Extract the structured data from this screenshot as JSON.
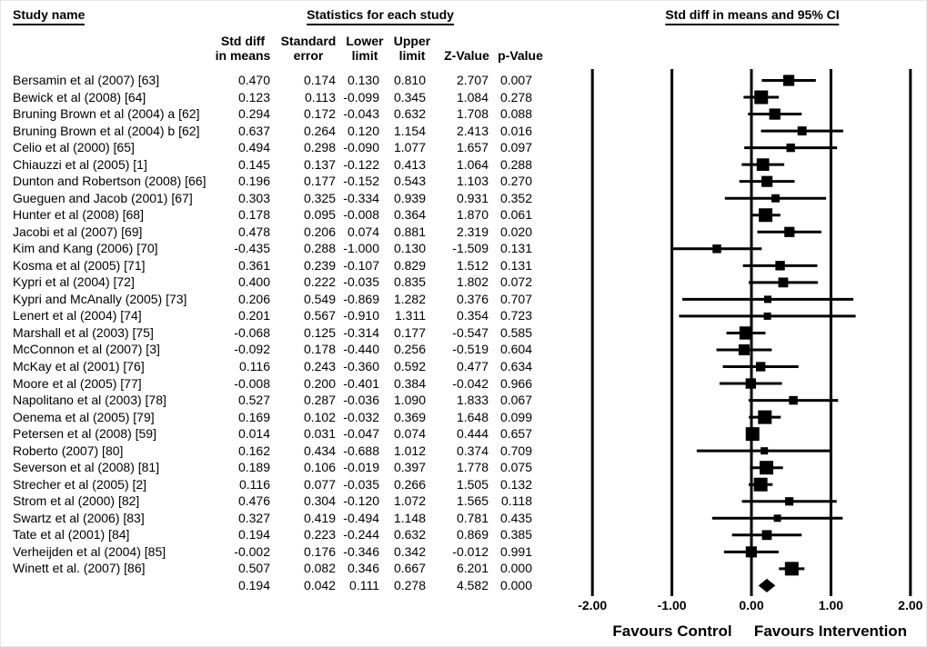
{
  "figure": {
    "study_col_title": "Study name",
    "stats_title": "Statistics for each study",
    "plot_title": "Std diff in means and 95% CI",
    "favours_left": "Favours Control",
    "favours_right": "Favours Intervention"
  },
  "chart_data": {
    "type": "forest",
    "effect_measure": "Std diff in means",
    "columns": [
      {
        "line1": "Std diff",
        "line2": "in means"
      },
      {
        "line1": "Standard",
        "line2": "error"
      },
      {
        "line1": "Lower",
        "line2": "limit"
      },
      {
        "line1": "Upper",
        "line2": "limit"
      },
      {
        "line1": "",
        "line2": "Z-Value"
      },
      {
        "line1": "",
        "line2": "p-Value"
      }
    ],
    "x_axis": {
      "range": [
        -2,
        2
      ],
      "ticks": [
        -2,
        -1,
        0,
        1,
        2
      ],
      "tick_labels": [
        "-2.00",
        "-1.00",
        "0.00",
        "1.00",
        "2.00"
      ],
      "grid": true
    },
    "studies": [
      {
        "name": "Bersamin et al (2007) [63]",
        "std_diff": "0.470",
        "std_err": "0.174",
        "lower": "0.130",
        "upper": "0.810",
        "z": "2.707",
        "p": "0.007"
      },
      {
        "name": "Bewick et al (2008) [64]",
        "std_diff": "0.123",
        "std_err": "0.113",
        "lower": "-0.099",
        "upper": "0.345",
        "z": "1.084",
        "p": "0.278"
      },
      {
        "name": "Bruning Brown et al (2004) a [62]",
        "std_diff": "0.294",
        "std_err": "0.172",
        "lower": "-0.043",
        "upper": "0.632",
        "z": "1.708",
        "p": "0.088"
      },
      {
        "name": "Bruning Brown et al (2004) b [62]",
        "std_diff": "0.637",
        "std_err": "0.264",
        "lower": "0.120",
        "upper": "1.154",
        "z": "2.413",
        "p": "0.016"
      },
      {
        "name": "Celio et al (2000) [65]",
        "std_diff": "0.494",
        "std_err": "0.298",
        "lower": "-0.090",
        "upper": "1.077",
        "z": "1.657",
        "p": "0.097"
      },
      {
        "name": "Chiauzzi et al (2005) [1]",
        "std_diff": "0.145",
        "std_err": "0.137",
        "lower": "-0.122",
        "upper": "0.413",
        "z": "1.064",
        "p": "0.288"
      },
      {
        "name": "Dunton and Robertson (2008) [66]",
        "std_diff": "0.196",
        "std_err": "0.177",
        "lower": "-0.152",
        "upper": "0.543",
        "z": "1.103",
        "p": "0.270"
      },
      {
        "name": "Gueguen and Jacob (2001) [67]",
        "std_diff": "0.303",
        "std_err": "0.325",
        "lower": "-0.334",
        "upper": "0.939",
        "z": "0.931",
        "p": "0.352"
      },
      {
        "name": "Hunter et al (2008) [68]",
        "std_diff": "0.178",
        "std_err": "0.095",
        "lower": "-0.008",
        "upper": "0.364",
        "z": "1.870",
        "p": "0.061"
      },
      {
        "name": "Jacobi et al (2007) [69]",
        "std_diff": "0.478",
        "std_err": "0.206",
        "lower": "0.074",
        "upper": "0.881",
        "z": "2.319",
        "p": "0.020"
      },
      {
        "name": "Kim and Kang (2006) [70]",
        "std_diff": "-0.435",
        "std_err": "0.288",
        "lower": "-1.000",
        "upper": "0.130",
        "z": "-1.509",
        "p": "0.131"
      },
      {
        "name": "Kosma et al (2005) [71]",
        "std_diff": "0.361",
        "std_err": "0.239",
        "lower": "-0.107",
        "upper": "0.829",
        "z": "1.512",
        "p": "0.131"
      },
      {
        "name": "Kypri et al (2004) [72]",
        "std_diff": "0.400",
        "std_err": "0.222",
        "lower": "-0.035",
        "upper": "0.835",
        "z": "1.802",
        "p": "0.072"
      },
      {
        "name": "Kypri and McAnally (2005) [73]",
        "std_diff": "0.206",
        "std_err": "0.549",
        "lower": "-0.869",
        "upper": "1.282",
        "z": "0.376",
        "p": "0.707"
      },
      {
        "name": "Lenert et al (2004) [74]",
        "std_diff": "0.201",
        "std_err": "0.567",
        "lower": "-0.910",
        "upper": "1.311",
        "z": "0.354",
        "p": "0.723"
      },
      {
        "name": "Marshall et al (2003) [75]",
        "std_diff": "-0.068",
        "std_err": "0.125",
        "lower": "-0.314",
        "upper": "0.177",
        "z": "-0.547",
        "p": "0.585"
      },
      {
        "name": "McConnon et al (2007) [3]",
        "std_diff": "-0.092",
        "std_err": "0.178",
        "lower": "-0.440",
        "upper": "0.256",
        "z": "-0.519",
        "p": "0.604"
      },
      {
        "name": "McKay et al (2001) [76]",
        "std_diff": "0.116",
        "std_err": "0.243",
        "lower": "-0.360",
        "upper": "0.592",
        "z": "0.477",
        "p": "0.634"
      },
      {
        "name": "Moore et al (2005) [77]",
        "std_diff": "-0.008",
        "std_err": "0.200",
        "lower": "-0.401",
        "upper": "0.384",
        "z": "-0.042",
        "p": "0.966"
      },
      {
        "name": "Napolitano et al (2003) [78]",
        "std_diff": "0.527",
        "std_err": "0.287",
        "lower": "-0.036",
        "upper": "1.090",
        "z": "1.833",
        "p": "0.067"
      },
      {
        "name": "Oenema et al (2005) [79]",
        "std_diff": "0.169",
        "std_err": "0.102",
        "lower": "-0.032",
        "upper": "0.369",
        "z": "1.648",
        "p": "0.099"
      },
      {
        "name": "Petersen et al (2008) [59]",
        "std_diff": "0.014",
        "std_err": "0.031",
        "lower": "-0.047",
        "upper": "0.074",
        "z": "0.444",
        "p": "0.657"
      },
      {
        "name": "Roberto (2007) [80]",
        "std_diff": "0.162",
        "std_err": "0.434",
        "lower": "-0.688",
        "upper": "1.012",
        "z": "0.374",
        "p": "0.709"
      },
      {
        "name": "Severson et al (2008) [81]",
        "std_diff": "0.189",
        "std_err": "0.106",
        "lower": "-0.019",
        "upper": "0.397",
        "z": "1.778",
        "p": "0.075"
      },
      {
        "name": "Strecher et al (2005) [2]",
        "std_diff": "0.116",
        "std_err": "0.077",
        "lower": "-0.035",
        "upper": "0.266",
        "z": "1.505",
        "p": "0.132"
      },
      {
        "name": "Strom et al (2000) [82]",
        "std_diff": "0.476",
        "std_err": "0.304",
        "lower": "-0.120",
        "upper": "1.072",
        "z": "1.565",
        "p": "0.118"
      },
      {
        "name": "Swartz et al (2006) [83]",
        "std_diff": "0.327",
        "std_err": "0.419",
        "lower": "-0.494",
        "upper": "1.148",
        "z": "0.781",
        "p": "0.435"
      },
      {
        "name": "Tate et al (2001) [84]",
        "std_diff": "0.194",
        "std_err": "0.223",
        "lower": "-0.244",
        "upper": "0.632",
        "z": "0.869",
        "p": "0.385"
      },
      {
        "name": "Verheijden et al (2004) [85]",
        "std_diff": "-0.002",
        "std_err": "0.176",
        "lower": "-0.346",
        "upper": "0.342",
        "z": "-0.012",
        "p": "0.991"
      },
      {
        "name": "Winett et al. (2007) [86]",
        "std_diff": "0.507",
        "std_err": "0.082",
        "lower": "0.346",
        "upper": "0.667",
        "z": "6.201",
        "p": "0.000"
      }
    ],
    "overall": {
      "name": "",
      "std_diff": "0.194",
      "std_err": "0.042",
      "lower": "0.111",
      "upper": "0.278",
      "z": "4.582",
      "p": "0.000"
    }
  }
}
